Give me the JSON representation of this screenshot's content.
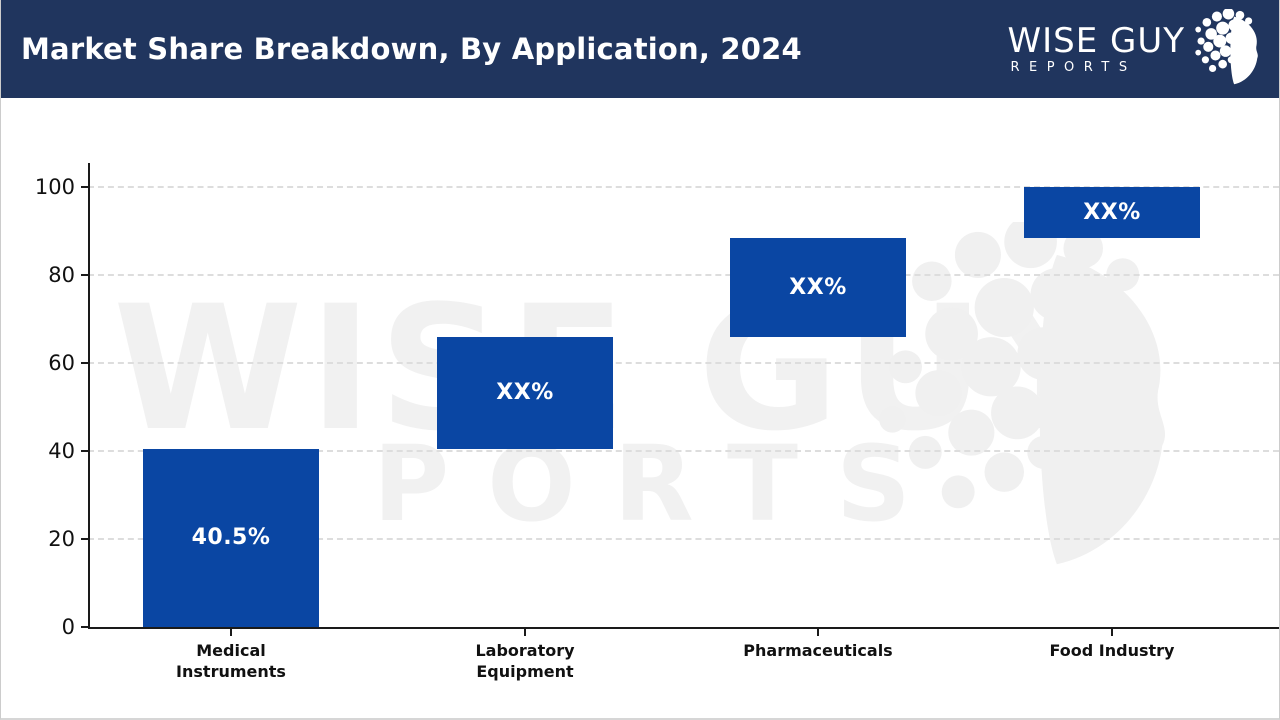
{
  "header": {
    "title": "Market Share Breakdown, By Application, 2024",
    "logo": {
      "name": "WISE GUY",
      "subtitle": "REPORTS"
    }
  },
  "watermark": {
    "line1": "WISE GUY",
    "line2": "PORTS"
  },
  "colors": {
    "header_bg": "#20355e",
    "bar": "#0a46a3",
    "bar_label": "#ffffff",
    "grid": "#dddddd",
    "axis": "#1a1a1a",
    "tick_text": "#111111",
    "watermark": "#f1f1f1",
    "border": "#cccccc"
  },
  "chart_data": {
    "type": "bar",
    "subtype": "waterfall",
    "title": "Market Share Breakdown, By Application, 2024",
    "xlabel": "",
    "ylabel": "",
    "ylim": [
      0,
      100
    ],
    "yticks": [
      0,
      20,
      40,
      60,
      80,
      100
    ],
    "grid": "horizontal-dashed",
    "legend": "none",
    "categories": [
      "Medical Instruments",
      "Laboratory Equipment",
      "Pharmaceuticals",
      "Food Industry"
    ],
    "category_lines": [
      [
        "Medical",
        "Instruments"
      ],
      [
        "Laboratory",
        "Equipment"
      ],
      [
        "Pharmaceuticals"
      ],
      [
        "Food Industry"
      ]
    ],
    "segments": [
      {
        "category": "Medical Instruments",
        "start": 0,
        "end": 40.5,
        "label": "40.5%"
      },
      {
        "category": "Laboratory Equipment",
        "start": 40.5,
        "end": 66,
        "label": "XX%"
      },
      {
        "category": "Pharmaceuticals",
        "start": 66,
        "end": 88.5,
        "label": "XX%"
      },
      {
        "category": "Food Industry",
        "start": 88.5,
        "end": 100,
        "label": "XX%"
      }
    ]
  }
}
